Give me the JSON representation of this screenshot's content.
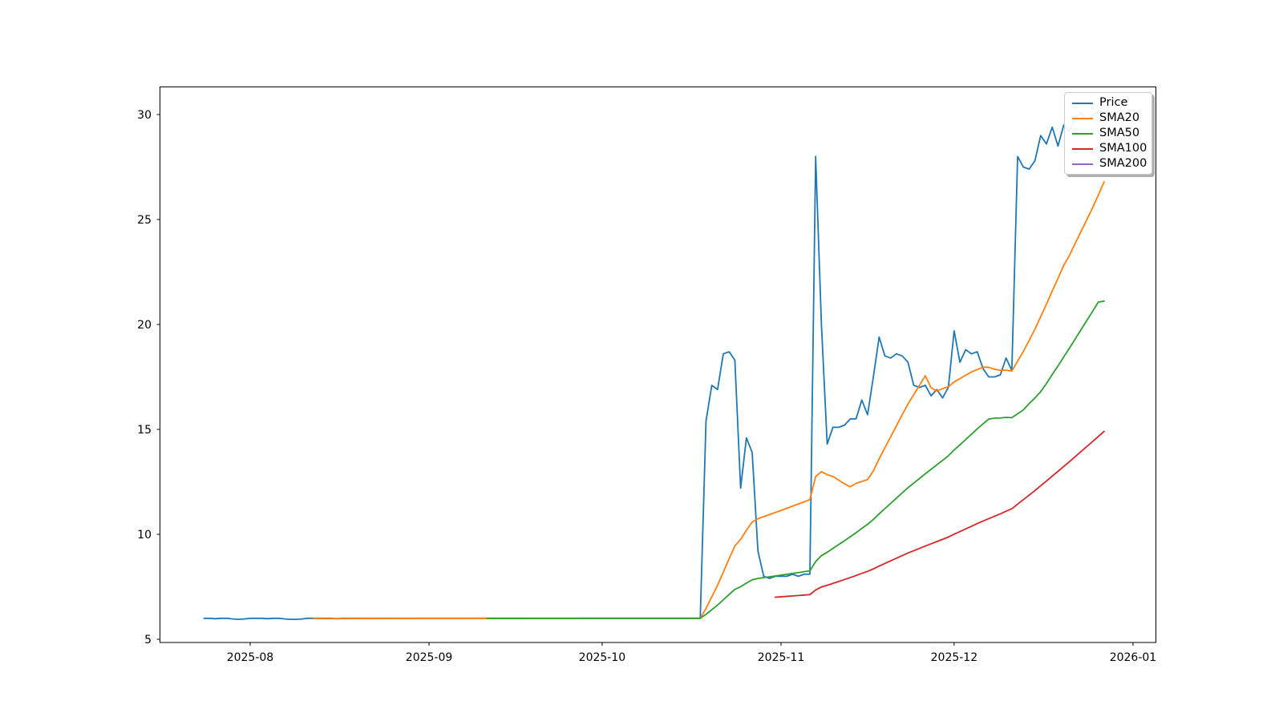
{
  "figure": {
    "background": "#ffffff"
  },
  "axes": {
    "x_ticks": [
      {
        "label": "2025-08",
        "date": "2025-08-01"
      },
      {
        "label": "2025-09",
        "date": "2025-09-01"
      },
      {
        "label": "2025-10",
        "date": "2025-10-01"
      },
      {
        "label": "2025-11",
        "date": "2025-11-01"
      },
      {
        "label": "2025-12",
        "date": "2025-12-01"
      },
      {
        "label": "2026-01",
        "date": "2026-01-01"
      }
    ],
    "y_ticks": [
      5,
      10,
      15,
      20,
      25,
      30
    ]
  },
  "legend": {
    "position": "upper right",
    "items": [
      {
        "label": "Price",
        "color": "#1f77b4"
      },
      {
        "label": "SMA20",
        "color": "#ff7f0e"
      },
      {
        "label": "SMA50",
        "color": "#2ca02c"
      },
      {
        "label": "SMA100",
        "color": "#d62728"
      },
      {
        "label": "SMA200",
        "color": "#9467bd"
      }
    ]
  },
  "chart_data": {
    "type": "line",
    "title": "",
    "xlabel": "",
    "ylabel": "",
    "grid": false,
    "x_start_date": "2025-07-24",
    "x_frequency": "daily",
    "xlim_dates": [
      "2025-07-16",
      "2026-01-04"
    ],
    "ylim": [
      4.7,
      31.4
    ],
    "price": {
      "name": "Price",
      "color": "#1f77b4",
      "values": [
        6,
        6,
        5.98,
        6,
        6,
        5.97,
        5.95,
        5.97,
        6,
        6,
        6,
        5.98,
        6,
        6,
        5.97,
        5.95,
        5.95,
        5.97,
        6,
        6,
        6,
        6,
        6,
        5.98,
        6,
        6,
        6,
        6,
        6,
        6,
        6,
        6,
        6,
        6,
        6,
        6,
        6,
        6,
        6,
        6,
        6,
        6,
        6,
        6,
        6,
        6,
        6,
        6,
        6,
        6,
        6,
        6,
        6,
        6,
        6,
        6,
        6,
        6,
        6,
        6,
        6,
        6,
        6,
        6,
        6,
        6,
        6,
        6,
        6,
        6,
        6,
        6,
        6,
        6,
        6,
        6,
        6,
        6,
        6,
        6,
        6,
        6,
        6,
        6,
        6,
        6,
        6,
        15.4,
        17.1,
        16.9,
        18.6,
        18.7,
        18.3,
        12.2,
        14.6,
        13.9,
        9.2,
        8,
        7.9,
        8,
        8,
        8,
        8.1,
        8,
        8.1,
        8.1,
        28,
        20,
        14.3,
        15.1,
        15.1,
        15.2,
        15.5,
        15.5,
        16.4,
        15.7,
        17.5,
        19.4,
        18.5,
        18.4,
        18.6,
        18.5,
        18.2,
        17.1,
        17,
        17.1,
        16.6,
        16.9,
        16.5,
        17,
        19.7,
        18.2,
        18.8,
        18.6,
        18.7,
        17.9,
        17.5,
        17.5,
        17.6,
        18.4,
        17.8,
        28,
        27.5,
        27.4,
        27.8,
        29,
        28.6,
        29.4,
        28.5,
        29.5,
        29.2,
        29.8,
        30.1,
        29.7,
        30,
        30.15,
        30
      ]
    },
    "sma_overlays": [
      {
        "name": "SMA20",
        "window": 20,
        "color": "#ff7f0e"
      },
      {
        "name": "SMA50",
        "window": 50,
        "color": "#2ca02c"
      },
      {
        "name": "SMA100",
        "window": 100,
        "color": "#d62728"
      },
      {
        "name": "SMA200",
        "window": 200,
        "color": "#9467bd"
      }
    ]
  }
}
